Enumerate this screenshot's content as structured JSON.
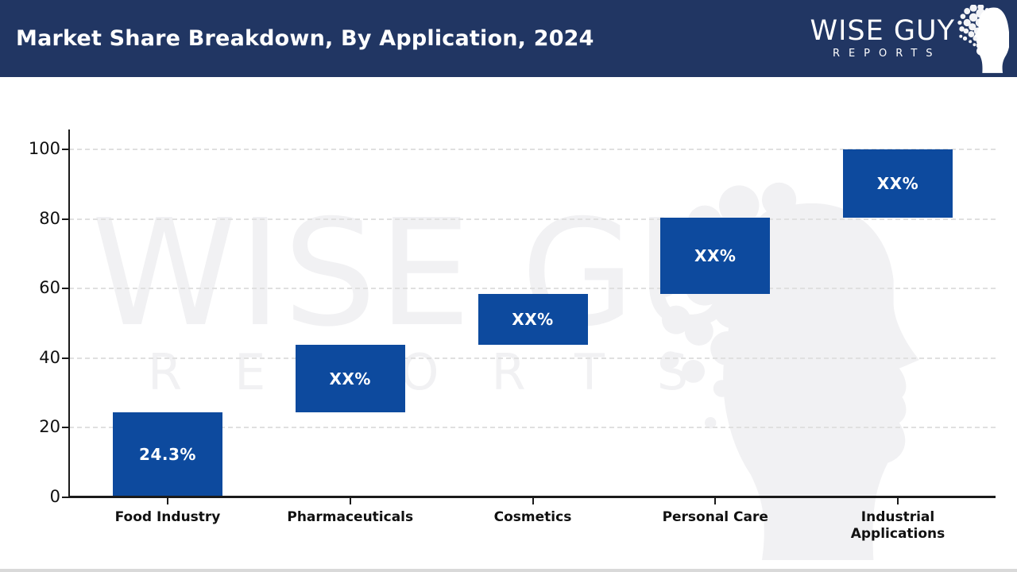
{
  "header": {
    "title": "Market Share Breakdown, By Application, 2024",
    "logo": {
      "brand_line1": "WISE GUY",
      "brand_line2": "REPORTS"
    }
  },
  "watermark": {
    "line1": "WISE GUY",
    "line2": "REPORTS"
  },
  "colors": {
    "header_bg": "#213663",
    "bar": "#0d4a9e",
    "bar_label": "#ffffff",
    "axis": "#1a1a1a",
    "text": "#111111",
    "gridline": "#e0e0e0",
    "watermark": "#f1f1f3",
    "footer_strip": "#d9d9d9"
  },
  "chart_data": {
    "type": "bar",
    "subtype": "waterfall",
    "title": "Market Share Breakdown, By Application, 2024",
    "categories": [
      "Food Industry",
      "Pharmaceuticals",
      "Cosmetics",
      "Personal Care",
      "Industrial Applications"
    ],
    "segments": [
      {
        "category": "Food Industry",
        "start": 0,
        "end": 24.3,
        "label": "24.3%"
      },
      {
        "category": "Pharmaceuticals",
        "start": 24.3,
        "end": 43.8,
        "label": "XX%"
      },
      {
        "category": "Cosmetics",
        "start": 43.8,
        "end": 58.5,
        "label": "XX%"
      },
      {
        "category": "Personal Care",
        "start": 58.5,
        "end": 80.3,
        "label": "XX%"
      },
      {
        "category": "Industrial Applications",
        "start": 80.3,
        "end": 100,
        "label": "XX%"
      }
    ],
    "yticks": [
      "0",
      "20",
      "40",
      "60",
      "80",
      "100"
    ],
    "ylim": [
      0,
      100
    ],
    "xlabel": "",
    "ylabel": "",
    "grid": "horizontal-dashed",
    "legend": "none"
  }
}
